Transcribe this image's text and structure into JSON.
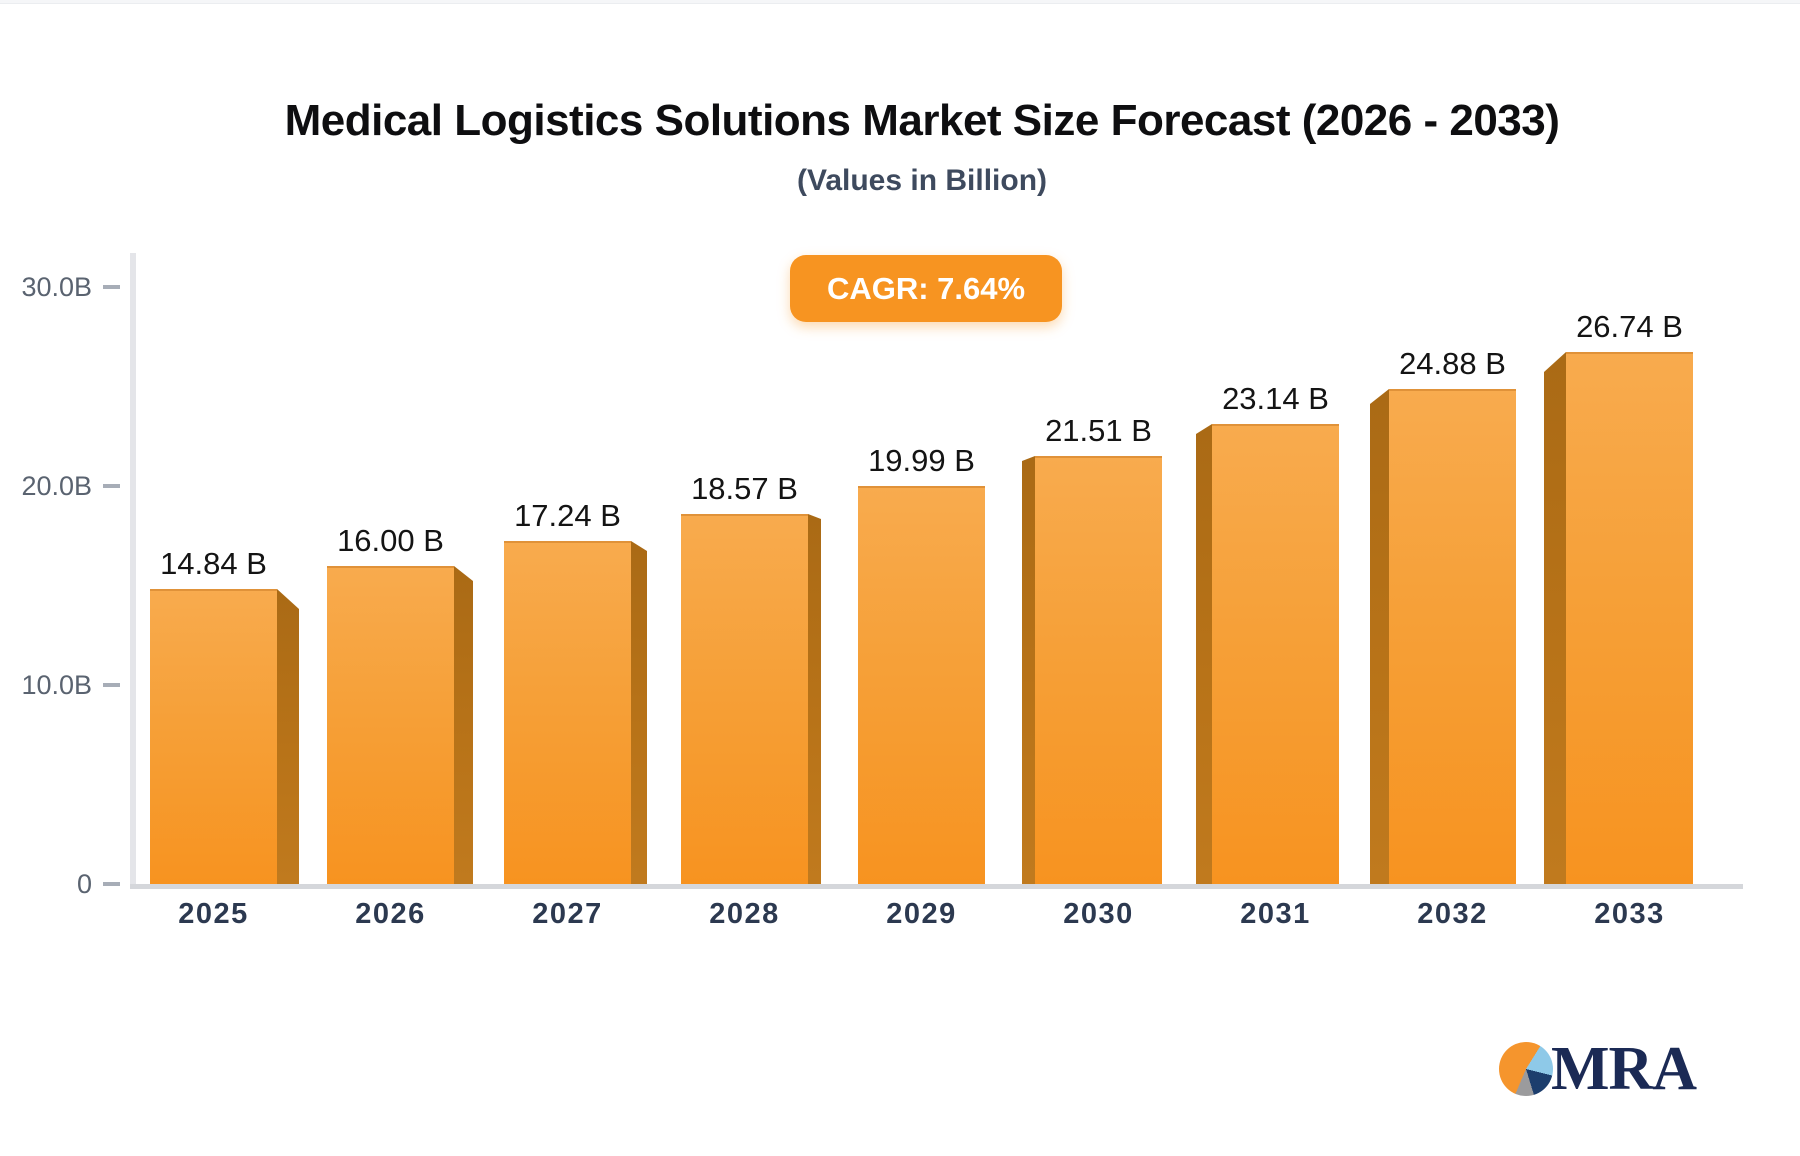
{
  "header": {
    "title": "Medical Logistics Solutions Market Size Forecast (2026 - 2033)",
    "subtitle": "(Values in Billion)",
    "cagr_label": "CAGR: 7.64%"
  },
  "chart_data": {
    "type": "bar",
    "title": "Medical Logistics Solutions Market Size Forecast (2026 - 2033)",
    "subtitle": "(Values in Billion)",
    "annotation": "CAGR: 7.64%",
    "categories": [
      "2025",
      "2026",
      "2027",
      "2028",
      "2029",
      "2030",
      "2031",
      "2032",
      "2033"
    ],
    "values": [
      14.84,
      16.0,
      17.24,
      18.57,
      19.99,
      21.51,
      23.14,
      24.88,
      26.74
    ],
    "value_labels": [
      "14.84 B",
      "16.00 B",
      "17.24 B",
      "18.57 B",
      "19.99 B",
      "21.51 B",
      "23.14 B",
      "24.88 B",
      "26.74 B"
    ],
    "xlabel": "",
    "ylabel": "",
    "ylim": [
      0,
      30
    ],
    "y_ticks": [
      {
        "label": "30.0B",
        "value": 30
      },
      {
        "label": "20.0B",
        "value": 20
      },
      {
        "label": "10.0B",
        "value": 10
      },
      {
        "label": "0",
        "value": 0
      }
    ],
    "grid": false,
    "legend": false,
    "bar_effect": "pseudo-3d, side faces oriented toward chart center",
    "colors": {
      "bar_front_top": "#f8ab4e",
      "bar_front_bottom": "#f79320",
      "bar_side": "#b87318",
      "badge_background": "#f79421",
      "badge_text": "#ffffff",
      "axis_line": "#e4e5e9",
      "baseline": "#d5d7db",
      "ytick_text": "#5a6370",
      "xtick_text": "#2c3950",
      "value_label_text": "#141414",
      "title_text": "#0e0e10",
      "subtitle_text": "#3e4a5e"
    }
  },
  "logo": {
    "text": "MRA",
    "text_color": "#1b2a55",
    "pie_colors": [
      "#f5952d",
      "#8ec9e8",
      "#1c3e6d",
      "#9b9b9d"
    ]
  }
}
